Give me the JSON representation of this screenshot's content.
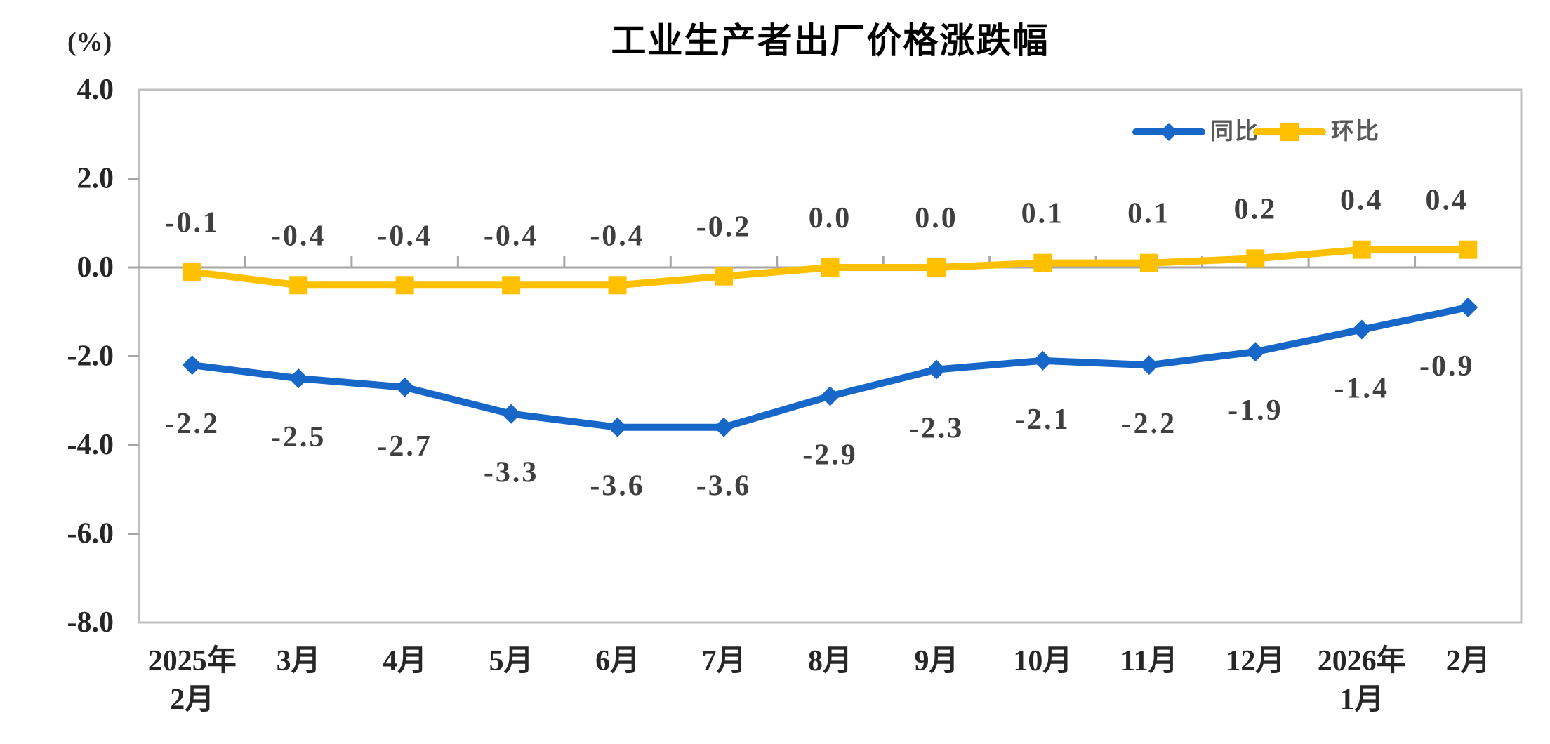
{
  "chart_data": {
    "type": "line",
    "title": "工业生产者出厂价格涨跌幅",
    "unit_label": "(%)",
    "categories": [
      "2025年\n2月",
      "3月",
      "4月",
      "5月",
      "6月",
      "7月",
      "8月",
      "9月",
      "10月",
      "11月",
      "12月",
      "2026年\n1月",
      "2月"
    ],
    "series": [
      {
        "name": "同比",
        "color": "#1767C9",
        "marker": "diamond",
        "label_position": "below",
        "values": [
          -2.2,
          -2.5,
          -2.7,
          -3.3,
          -3.6,
          -3.6,
          -2.9,
          -2.3,
          -2.1,
          -2.2,
          -1.9,
          -1.4,
          -0.9
        ]
      },
      {
        "name": "环比",
        "color": "#FFC000",
        "marker": "square",
        "label_position": "above",
        "values": [
          -0.1,
          -0.4,
          -0.4,
          -0.4,
          -0.4,
          -0.2,
          0.0,
          0.0,
          0.1,
          0.1,
          0.2,
          0.4,
          0.4
        ]
      }
    ],
    "y_axis": {
      "min": -8.0,
      "max": 4.0,
      "tick_step": 2.0,
      "tick_labels": [
        "4.0",
        "2.0",
        "0.0",
        "-2.0",
        "-4.0",
        "-6.0",
        "-8.0"
      ]
    },
    "legend_position": "top-right-inside",
    "grid": false,
    "colors": {
      "border": "#BFBFBF",
      "axis": "#A6A6A6",
      "tick_label": "#262626",
      "value_label": "#3F3F3F",
      "legend_text": "#595959"
    }
  }
}
